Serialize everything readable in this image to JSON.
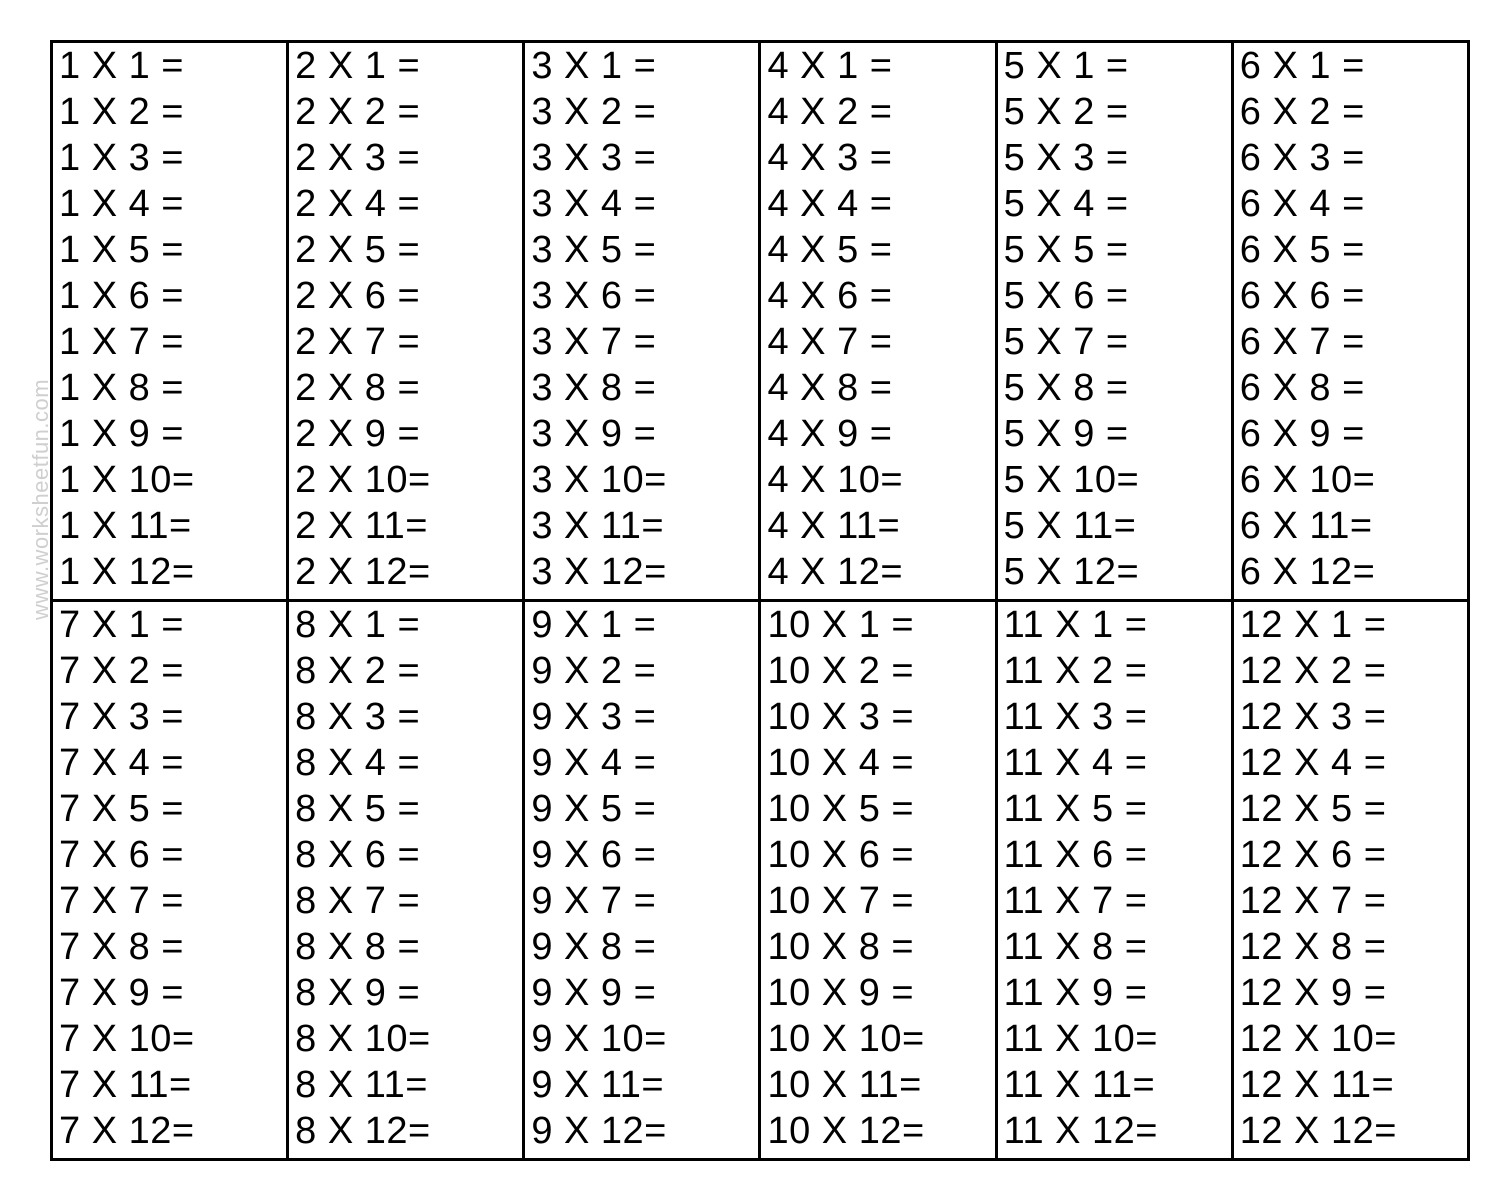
{
  "watermark": "www.worksheetfun.com",
  "layout": {
    "grid_rows": 2,
    "grid_cols": 6,
    "rows_per_cell": 12,
    "font_family": "Comic Sans MS",
    "eq_fontsize_pt": 29,
    "text_color": "#000000",
    "border_color": "#000000",
    "background_color": "#ffffff",
    "watermark_color": "#cfcfcf"
  },
  "equation_pattern": {
    "operator": "X",
    "suffix_narrow": "=",
    "suffix_wide": " ="
  },
  "cells": [
    [
      {
        "m": 1,
        "rows": [
          1,
          2,
          3,
          4,
          5,
          6,
          7,
          8,
          9,
          10,
          11,
          12
        ]
      },
      {
        "m": 2,
        "rows": [
          1,
          2,
          3,
          4,
          5,
          6,
          7,
          8,
          9,
          10,
          11,
          12
        ]
      },
      {
        "m": 3,
        "rows": [
          1,
          2,
          3,
          4,
          5,
          6,
          7,
          8,
          9,
          10,
          11,
          12
        ]
      },
      {
        "m": 4,
        "rows": [
          1,
          2,
          3,
          4,
          5,
          6,
          7,
          8,
          9,
          10,
          11,
          12
        ]
      },
      {
        "m": 5,
        "rows": [
          1,
          2,
          3,
          4,
          5,
          6,
          7,
          8,
          9,
          10,
          11,
          12
        ]
      },
      {
        "m": 6,
        "rows": [
          1,
          2,
          3,
          4,
          5,
          6,
          7,
          8,
          9,
          10,
          11,
          12
        ]
      }
    ],
    [
      {
        "m": 7,
        "rows": [
          1,
          2,
          3,
          4,
          5,
          6,
          7,
          8,
          9,
          10,
          11,
          12
        ]
      },
      {
        "m": 8,
        "rows": [
          1,
          2,
          3,
          4,
          5,
          6,
          7,
          8,
          9,
          10,
          11,
          12
        ]
      },
      {
        "m": 9,
        "rows": [
          1,
          2,
          3,
          4,
          5,
          6,
          7,
          8,
          9,
          10,
          11,
          12
        ]
      },
      {
        "m": 10,
        "rows": [
          1,
          2,
          3,
          4,
          5,
          6,
          7,
          8,
          9,
          10,
          11,
          12
        ]
      },
      {
        "m": 11,
        "rows": [
          1,
          2,
          3,
          4,
          5,
          6,
          7,
          8,
          9,
          10,
          11,
          12
        ]
      },
      {
        "m": 12,
        "rows": [
          1,
          2,
          3,
          4,
          5,
          6,
          7,
          8,
          9,
          10,
          11,
          12
        ]
      }
    ]
  ]
}
